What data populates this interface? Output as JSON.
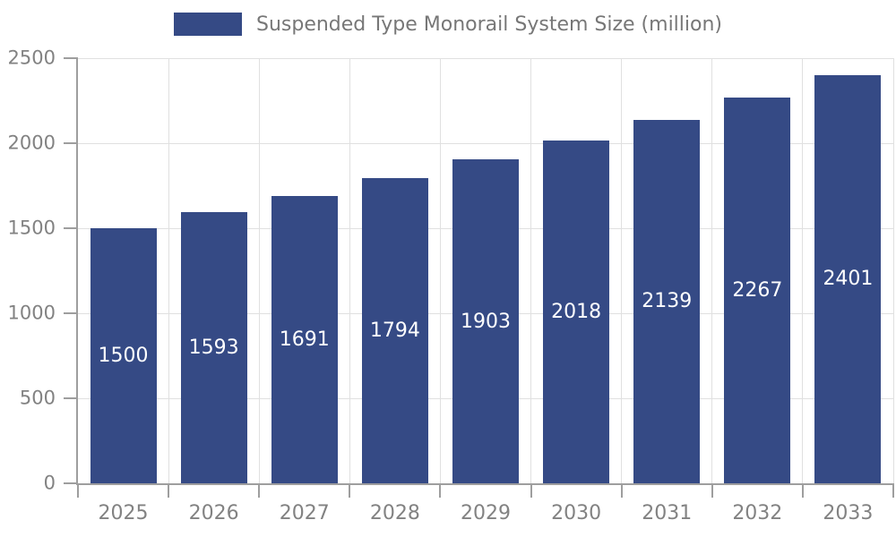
{
  "chart_data": {
    "type": "bar",
    "title": "Suspended Type Monorail System Size (million)",
    "categories": [
      "2025",
      "2026",
      "2027",
      "2028",
      "2029",
      "2030",
      "2031",
      "2032",
      "2033"
    ],
    "values": [
      1500,
      1593,
      1691,
      1794,
      1903,
      2018,
      2139,
      2267,
      2401
    ],
    "xlabel": "",
    "ylabel": "",
    "ylim": [
      0,
      2500
    ],
    "yticks": [
      0,
      500,
      1000,
      1500,
      2000,
      2500
    ],
    "grid": true,
    "legend_position": "top-center",
    "bar_label_position": "inside-center",
    "colors": {
      "bar": "#354A85",
      "bar_label": "#FFFFFF",
      "axis_text": "#828282",
      "axis_line": "#9E9E9E",
      "grid_line": "#E0E0E0",
      "background": "#FFFFFF"
    }
  }
}
